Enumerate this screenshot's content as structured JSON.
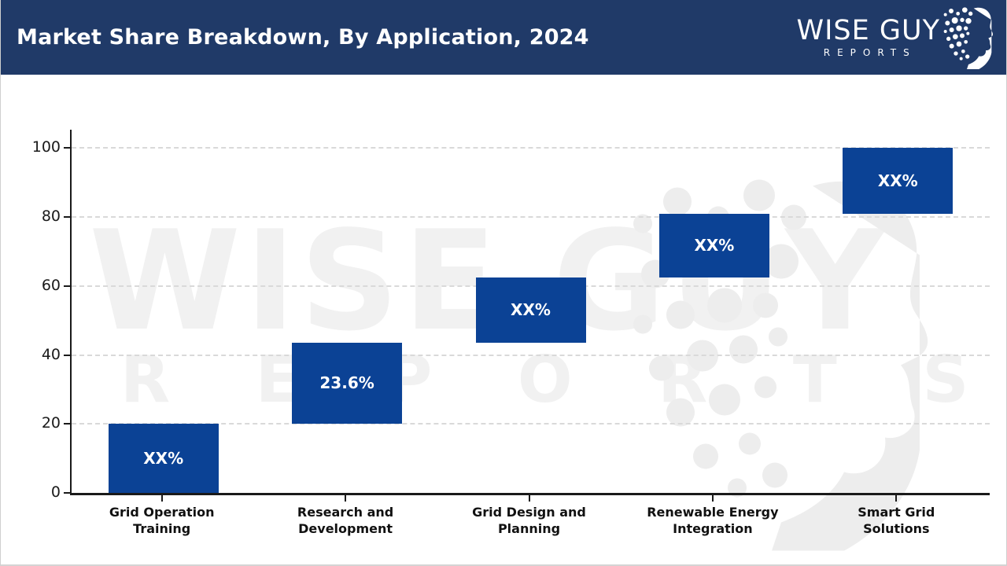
{
  "header": {
    "title": "Market Share Breakdown, By Application, 2024",
    "logo": {
      "line1": "WISE GUY",
      "line2": "REPORTS"
    }
  },
  "watermark": {
    "line1": "WISE GUY",
    "line2": "R E P O R T S"
  },
  "chart_data": {
    "type": "bar",
    "variant": "waterfall",
    "title": "Market Share Breakdown, By Application, 2024",
    "categories": [
      "Grid Operation\nTraining",
      "Research and\nDevelopment",
      "Grid Design and\nPlanning",
      "Renewable Energy\nIntegration",
      "Smart Grid\nSolutions"
    ],
    "segments": [
      {
        "category": "Grid Operation Training",
        "start": 0,
        "end": 20,
        "label": "XX%"
      },
      {
        "category": "Research and Development",
        "start": 20,
        "end": 43.6,
        "label": "23.6%"
      },
      {
        "category": "Grid Design and Planning",
        "start": 43.6,
        "end": 62.4,
        "label": "XX%"
      },
      {
        "category": "Renewable Energy Integration",
        "start": 62.4,
        "end": 81,
        "label": "XX%"
      },
      {
        "category": "Smart Grid Solutions",
        "start": 81,
        "end": 100,
        "label": "XX%"
      }
    ],
    "xlabel": "",
    "ylabel": "",
    "ylim": [
      0,
      105
    ],
    "yticks": [
      0,
      20,
      40,
      60,
      80,
      100
    ],
    "grid": "horizontal-dashed",
    "legend": "none",
    "bar_color": "#0b4295",
    "bar_label_color": "#ffffff",
    "axis_color": "#1a1a1a",
    "gridline_color": "#d9d9d9",
    "header_color": "#203a68",
    "watermark_color": "#f1f1f1"
  }
}
